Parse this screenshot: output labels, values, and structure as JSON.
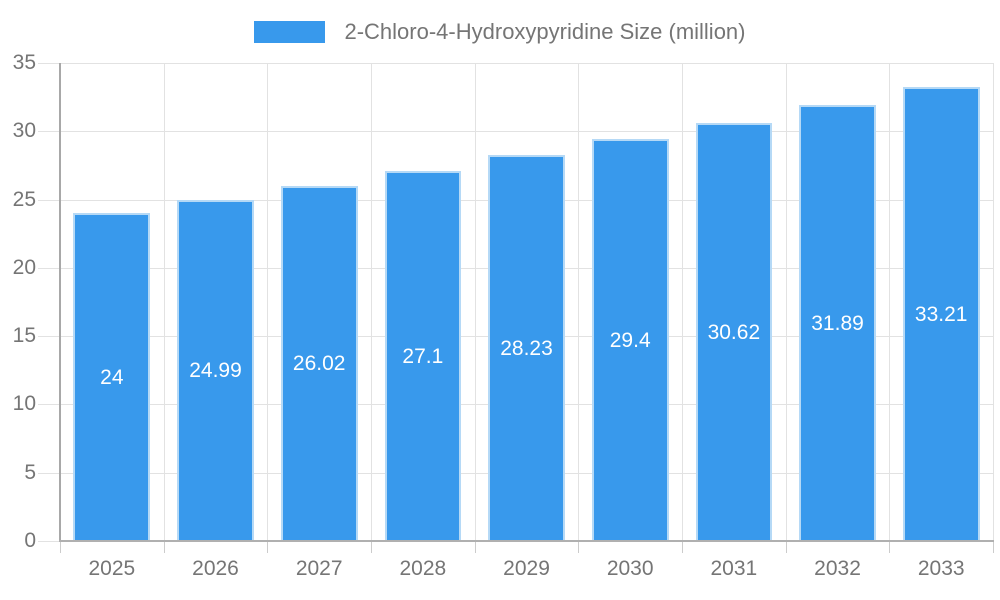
{
  "chart_data": {
    "type": "bar",
    "title": "2-Chloro-4-Hydroxypyridine Size (million)",
    "legend": {
      "label": "2-Chloro-4-Hydroxypyridine Size (million)",
      "position": "top"
    },
    "categories": [
      "2025",
      "2026",
      "2027",
      "2028",
      "2029",
      "2030",
      "2031",
      "2032",
      "2033"
    ],
    "values": [
      24,
      24.99,
      26.02,
      27.1,
      28.23,
      29.4,
      30.62,
      31.89,
      33.21
    ],
    "value_labels": [
      "24",
      "24.99",
      "26.02",
      "27.1",
      "28.23",
      "29.4",
      "30.62",
      "31.89",
      "33.21"
    ],
    "xlabel": "",
    "ylabel": "",
    "ylim": [
      0,
      35
    ],
    "y_ticks": [
      0,
      5,
      10,
      15,
      20,
      25,
      30,
      35
    ],
    "grid": "on",
    "colors": {
      "bar_fill": "#3899EC",
      "bar_border": "#B5D9F6",
      "value_label_text": "#FFFFFF",
      "axis_text": "#757575",
      "gridline": "#E2E2E2",
      "axis_line": "#AAAAAA"
    }
  }
}
